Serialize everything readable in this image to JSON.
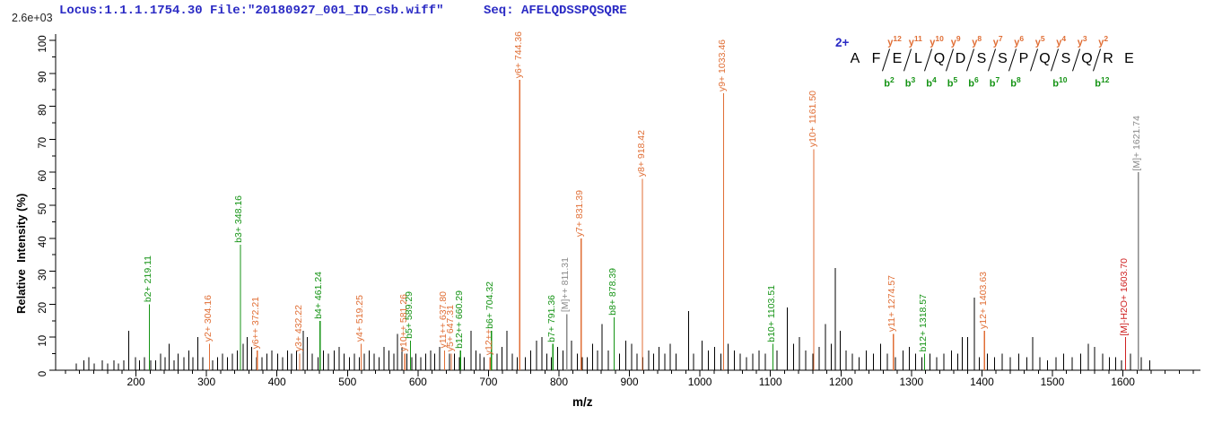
{
  "header": {
    "locus_file": "Locus:1.1.1.1754.30 File:\"20180927_001_ID_csb.wiff\"",
    "seq": "Seq: AFELQDSSPQSQRE",
    "max_intensity": "2.6e+03"
  },
  "colors": {
    "y_ion": "#E06E35",
    "b_ion": "#149314",
    "precursor": "#8a8a8a",
    "precursor_loss": "#CF2121",
    "noise": "#000000",
    "header_text": "#2A2AC4",
    "axis": "#000000"
  },
  "annotation": {
    "charge": "2+",
    "residues": [
      "A",
      "F",
      "E",
      "L",
      "Q",
      "D",
      "S",
      "S",
      "P",
      "Q",
      "S",
      "Q",
      "R",
      "E"
    ],
    "cleavages": [
      {
        "after": 2,
        "y": "12",
        "b": "2"
      },
      {
        "after": 3,
        "y": "11",
        "b": "3"
      },
      {
        "after": 4,
        "y": "10",
        "b": "4"
      },
      {
        "after": 5,
        "y": "9",
        "b": "5"
      },
      {
        "after": 6,
        "y": "8",
        "b": "6"
      },
      {
        "after": 7,
        "y": "7",
        "b": "7"
      },
      {
        "after": 8,
        "y": "6",
        "b": "8"
      },
      {
        "after": 9,
        "y": "5",
        "b": null
      },
      {
        "after": 10,
        "y": "4",
        "b": "10"
      },
      {
        "after": 11,
        "y": "3",
        "b": null
      },
      {
        "after": 12,
        "y": "2",
        "b": "12"
      }
    ]
  },
  "chart_data": {
    "type": "bar",
    "subtype": "ms2-centroid-stick-spectrum",
    "title": "",
    "xlabel": "m/z",
    "ylabel": "Relative  Intensity (%)",
    "y_absolute_max": "2.6e+03",
    "xlim": [
      86,
      1710
    ],
    "ylim": [
      0,
      100
    ],
    "x_tick_labels": [
      200,
      300,
      400,
      500,
      600,
      700,
      800,
      900,
      1000,
      1100,
      1200,
      1300,
      1400,
      1500,
      1600
    ],
    "x_minor_tick_step": 20,
    "y_tick_labels": [
      0,
      10,
      20,
      30,
      40,
      50,
      60,
      70,
      80,
      90,
      100
    ],
    "y_minor_tick_step": 5,
    "grid": false,
    "legend": "none",
    "labeled_peaks": [
      {
        "label": "b2+ 219.11",
        "mz": 219.11,
        "intensity_pct": 20,
        "series": "b"
      },
      {
        "label": "y2+ 304.16",
        "mz": 304.16,
        "intensity_pct": 8,
        "series": "y"
      },
      {
        "label": "b3+ 348.16",
        "mz": 348.16,
        "intensity_pct": 38,
        "series": "b"
      },
      {
        "label": "y6++ 372.21",
        "mz": 372.21,
        "intensity_pct": 6,
        "series": "y"
      },
      {
        "label": "y3+ 432.22",
        "mz": 432.22,
        "intensity_pct": 5,
        "series": "y"
      },
      {
        "label": "b4+ 461.24",
        "mz": 461.24,
        "intensity_pct": 15,
        "series": "b"
      },
      {
        "label": "y4+ 519.25",
        "mz": 519.25,
        "intensity_pct": 8,
        "series": "y"
      },
      {
        "label": "y10++ 581.26",
        "mz": 581.26,
        "intensity_pct": 5,
        "series": "y"
      },
      {
        "label": "b5+ 589.29",
        "mz": 589.29,
        "intensity_pct": 9,
        "series": "b"
      },
      {
        "label": "y11++ 637.80",
        "mz": 637.8,
        "intensity_pct": 6,
        "series": "y"
      },
      {
        "label": "y5+ 647.31",
        "mz": 647.31,
        "intensity_pct": 5,
        "series": "y"
      },
      {
        "label": "b12++ 660.29",
        "mz": 660.29,
        "intensity_pct": 6,
        "series": "b"
      },
      {
        "label": "y12++",
        "mz": 702.33,
        "intensity_pct": 4,
        "series": "y"
      },
      {
        "label": "b6+ 704.32",
        "mz": 704.32,
        "intensity_pct": 12,
        "series": "b"
      },
      {
        "label": "y6+ 744.36",
        "mz": 744.36,
        "intensity_pct": 88,
        "series": "y"
      },
      {
        "label": "b7+ 791.36",
        "mz": 791.36,
        "intensity_pct": 8,
        "series": "b"
      },
      {
        "label": "[M]++ 811.31",
        "mz": 811.31,
        "intensity_pct": 17,
        "series": "precursor"
      },
      {
        "label": "y7+ 831.39",
        "mz": 831.39,
        "intensity_pct": 40,
        "series": "y"
      },
      {
        "label": "b8+ 878.39",
        "mz": 878.39,
        "intensity_pct": 16,
        "series": "b"
      },
      {
        "label": "y8+ 918.42",
        "mz": 918.42,
        "intensity_pct": 58,
        "series": "y"
      },
      {
        "label": "y9+ 1033.46",
        "mz": 1033.46,
        "intensity_pct": 84,
        "series": "y"
      },
      {
        "label": "b10+ 1103.51",
        "mz": 1103.51,
        "intensity_pct": 8,
        "series": "b"
      },
      {
        "label": "y10+ 1161.50",
        "mz": 1161.5,
        "intensity_pct": 67,
        "series": "y"
      },
      {
        "label": "y11+ 1274.57",
        "mz": 1274.57,
        "intensity_pct": 11,
        "series": "y"
      },
      {
        "label": "b12+ 1318.57",
        "mz": 1318.57,
        "intensity_pct": 5,
        "series": "b"
      },
      {
        "label": "y12+ 1403.63",
        "mz": 1403.63,
        "intensity_pct": 12,
        "series": "y"
      },
      {
        "label": "[M]-H2O+ 1603.70",
        "mz": 1603.7,
        "intensity_pct": 10,
        "series": "precursor_loss"
      },
      {
        "label": "[M]+ 1621.74",
        "mz": 1621.74,
        "intensity_pct": 60,
        "series": "precursor"
      }
    ],
    "unlabeled_peaks": [
      [
        115,
        2
      ],
      [
        126,
        3
      ],
      [
        133,
        4
      ],
      [
        141,
        2
      ],
      [
        152,
        3
      ],
      [
        160,
        2
      ],
      [
        169,
        3
      ],
      [
        175,
        2
      ],
      [
        183,
        3
      ],
      [
        190,
        12
      ],
      [
        199,
        4
      ],
      [
        205,
        3
      ],
      [
        212,
        4
      ],
      [
        221,
        3
      ],
      [
        228,
        3
      ],
      [
        235,
        5
      ],
      [
        241,
        4
      ],
      [
        247,
        8
      ],
      [
        254,
        3
      ],
      [
        260,
        5
      ],
      [
        268,
        4
      ],
      [
        275,
        6
      ],
      [
        281,
        4
      ],
      [
        288,
        10
      ],
      [
        295,
        4
      ],
      [
        309,
        3
      ],
      [
        316,
        4
      ],
      [
        323,
        5
      ],
      [
        330,
        4
      ],
      [
        337,
        5
      ],
      [
        344,
        6
      ],
      [
        352,
        8
      ],
      [
        358,
        10
      ],
      [
        364,
        7
      ],
      [
        371,
        4
      ],
      [
        379,
        4
      ],
      [
        386,
        5
      ],
      [
        393,
        6
      ],
      [
        401,
        5
      ],
      [
        408,
        4
      ],
      [
        415,
        6
      ],
      [
        421,
        5
      ],
      [
        428,
        6
      ],
      [
        437,
        12
      ],
      [
        443,
        10
      ],
      [
        450,
        5
      ],
      [
        458,
        4
      ],
      [
        466,
        6
      ],
      [
        473,
        5
      ],
      [
        481,
        6
      ],
      [
        488,
        7
      ],
      [
        495,
        5
      ],
      [
        503,
        4
      ],
      [
        510,
        5
      ],
      [
        517,
        4
      ],
      [
        524,
        5
      ],
      [
        531,
        6
      ],
      [
        538,
        5
      ],
      [
        545,
        4
      ],
      [
        552,
        7
      ],
      [
        559,
        6
      ],
      [
        566,
        5
      ],
      [
        571,
        11
      ],
      [
        577,
        7
      ],
      [
        584,
        5
      ],
      [
        591,
        4
      ],
      [
        597,
        5
      ],
      [
        604,
        4
      ],
      [
        611,
        5
      ],
      [
        618,
        6
      ],
      [
        624,
        5
      ],
      [
        631,
        7
      ],
      [
        638,
        6
      ],
      [
        645,
        5
      ],
      [
        652,
        5
      ],
      [
        659,
        4
      ],
      [
        666,
        4
      ],
      [
        675,
        12
      ],
      [
        682,
        6
      ],
      [
        688,
        5
      ],
      [
        694,
        4
      ],
      [
        703,
        4
      ],
      [
        712,
        5
      ],
      [
        719,
        7
      ],
      [
        726,
        12
      ],
      [
        734,
        5
      ],
      [
        741,
        4
      ],
      [
        752,
        4
      ],
      [
        760,
        6
      ],
      [
        768,
        9
      ],
      [
        776,
        10
      ],
      [
        783,
        5
      ],
      [
        789,
        4
      ],
      [
        798,
        7
      ],
      [
        806,
        6
      ],
      [
        818,
        9
      ],
      [
        826,
        5
      ],
      [
        833,
        4
      ],
      [
        840,
        4
      ],
      [
        848,
        8
      ],
      [
        855,
        6
      ],
      [
        861,
        14
      ],
      [
        870,
        6
      ],
      [
        878,
        5
      ],
      [
        886,
        5
      ],
      [
        895,
        9
      ],
      [
        903,
        8
      ],
      [
        911,
        5
      ],
      [
        919,
        4
      ],
      [
        927,
        6
      ],
      [
        934,
        5
      ],
      [
        942,
        7
      ],
      [
        950,
        5
      ],
      [
        958,
        8
      ],
      [
        966,
        5
      ],
      [
        984,
        18
      ],
      [
        991,
        5
      ],
      [
        1003,
        9
      ],
      [
        1012,
        6
      ],
      [
        1021,
        7
      ],
      [
        1030,
        5
      ],
      [
        1040,
        8
      ],
      [
        1049,
        6
      ],
      [
        1057,
        5
      ],
      [
        1066,
        4
      ],
      [
        1075,
        5
      ],
      [
        1084,
        6
      ],
      [
        1093,
        5
      ],
      [
        1109,
        6
      ],
      [
        1124,
        19
      ],
      [
        1133,
        8
      ],
      [
        1141,
        10
      ],
      [
        1150,
        6
      ],
      [
        1160,
        5
      ],
      [
        1169,
        7
      ],
      [
        1178,
        14
      ],
      [
        1186,
        8
      ],
      [
        1192,
        31
      ],
      [
        1199,
        12
      ],
      [
        1207,
        6
      ],
      [
        1216,
        5
      ],
      [
        1226,
        4
      ],
      [
        1236,
        6
      ],
      [
        1246,
        5
      ],
      [
        1256,
        8
      ],
      [
        1266,
        5
      ],
      [
        1277,
        4
      ],
      [
        1288,
        6
      ],
      [
        1297,
        7
      ],
      [
        1306,
        5
      ],
      [
        1315,
        4
      ],
      [
        1326,
        5
      ],
      [
        1336,
        4
      ],
      [
        1346,
        5
      ],
      [
        1357,
        6
      ],
      [
        1366,
        5
      ],
      [
        1372,
        10
      ],
      [
        1380,
        10
      ],
      [
        1389,
        22
      ],
      [
        1396,
        4
      ],
      [
        1408,
        5
      ],
      [
        1418,
        4
      ],
      [
        1429,
        5
      ],
      [
        1440,
        4
      ],
      [
        1452,
        5
      ],
      [
        1464,
        4
      ],
      [
        1472,
        10
      ],
      [
        1482,
        4
      ],
      [
        1493,
        3
      ],
      [
        1505,
        4
      ],
      [
        1516,
        5
      ],
      [
        1528,
        4
      ],
      [
        1540,
        5
      ],
      [
        1551,
        8
      ],
      [
        1560,
        7
      ],
      [
        1571,
        5
      ],
      [
        1581,
        4
      ],
      [
        1590,
        4
      ],
      [
        1598,
        3
      ],
      [
        1611,
        5
      ],
      [
        1626,
        4
      ],
      [
        1638,
        3
      ]
    ]
  }
}
